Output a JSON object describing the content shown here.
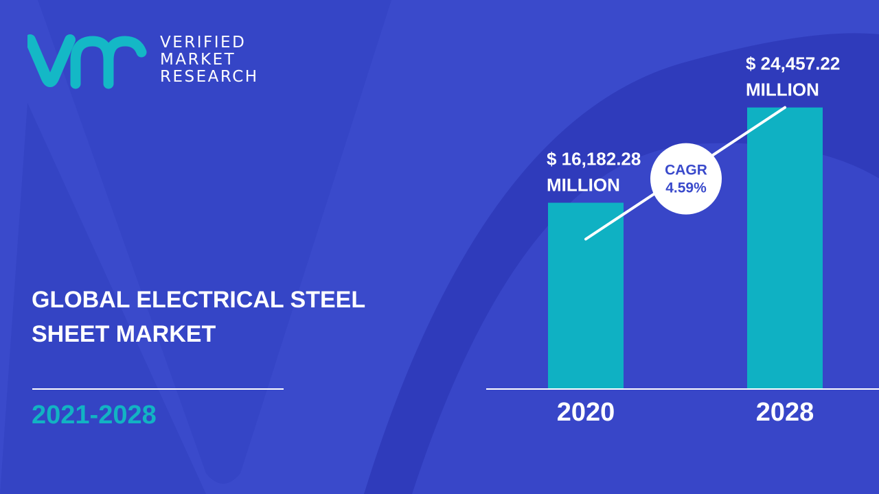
{
  "colors": {
    "background": "#3a4acb",
    "background_shape": "#2f3bbb",
    "bar": "#0fb1c3",
    "logo_teal": "#14b8c6",
    "accent_text": "#12b3c3",
    "cagr_text": "#3a4acb"
  },
  "logo": {
    "icon": "vmr-logo-icon",
    "line1": "VERIFIED",
    "line2": "MARKET",
    "line3": "RESEARCH"
  },
  "title": {
    "line1": "GLOBAL ELECTRICAL STEEL",
    "line2": "SHEET MARKET"
  },
  "period": "2021-2028",
  "chart_data": {
    "type": "bar",
    "categories": [
      "2020",
      "2028"
    ],
    "values": [
      16182.28,
      24457.22
    ],
    "value_labels": [
      {
        "line1": "$ 16,182.28",
        "line2": "MILLION"
      },
      {
        "line1": "$ 24,457.22",
        "line2": "MILLION"
      }
    ],
    "cagr": {
      "line1": "CAGR",
      "line2": "4.59%"
    },
    "ylim": [
      0,
      27000
    ],
    "grid": false,
    "legend": "none"
  }
}
